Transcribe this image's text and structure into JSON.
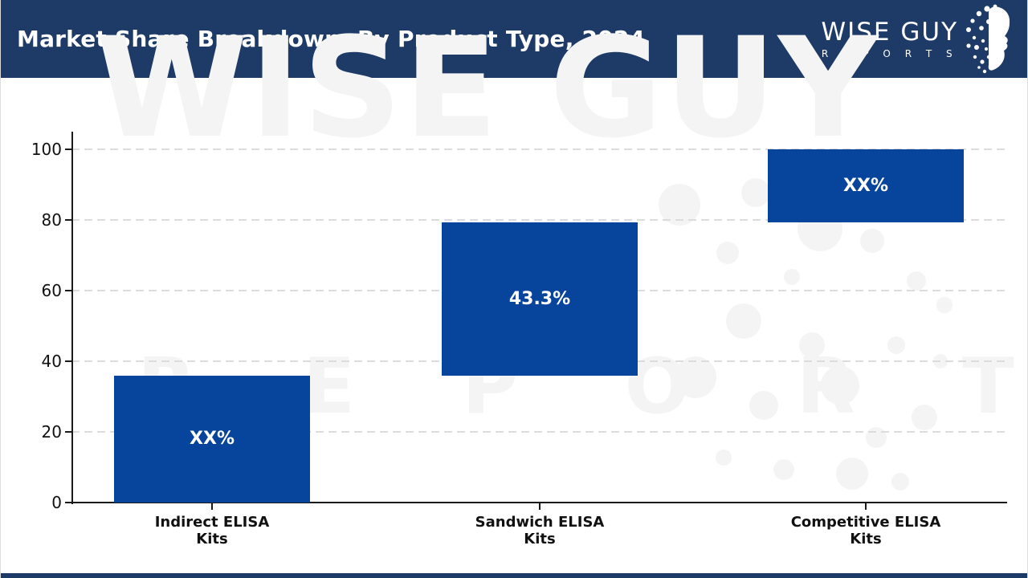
{
  "header": {
    "title": "Market Share Breakdown, By Product Type, 2024",
    "logo_line1": "WISE GUY",
    "logo_line2": "R E P O R T S"
  },
  "watermark": {
    "line1": "WISE GUY",
    "line2": "R E P O R T S"
  },
  "colors": {
    "header_bg": "#1E3A67",
    "bar": "#07449C",
    "grid": "#DCDCDC",
    "axis": "#1A1A1A",
    "bar_label": "#FFFFFF",
    "watermark": "#F4F4F4",
    "tick_text": "#111111"
  },
  "chart_data": {
    "type": "bar",
    "variant": "waterfall",
    "title": "Market Share Breakdown, By Product Type, 2024",
    "categories": [
      "Indirect ELISA\nKits",
      "Sandwich ELISA\nKits",
      "Competitive ELISA\nKits"
    ],
    "segments": [
      {
        "category": "Indirect ELISA Kits",
        "start": 0,
        "end": 36,
        "label": "XX%"
      },
      {
        "category": "Sandwich ELISA Kits",
        "start": 36,
        "end": 79.3,
        "label": "43.3%"
      },
      {
        "category": "Competitive ELISA Kits",
        "start": 79.3,
        "end": 100,
        "label": "XX%"
      }
    ],
    "ylim": [
      0,
      100
    ],
    "yticks": [
      0,
      20,
      40,
      60,
      80,
      100
    ],
    "xlabel": "",
    "ylabel": "",
    "legend": "none",
    "grid": "horizontal-dashed"
  }
}
